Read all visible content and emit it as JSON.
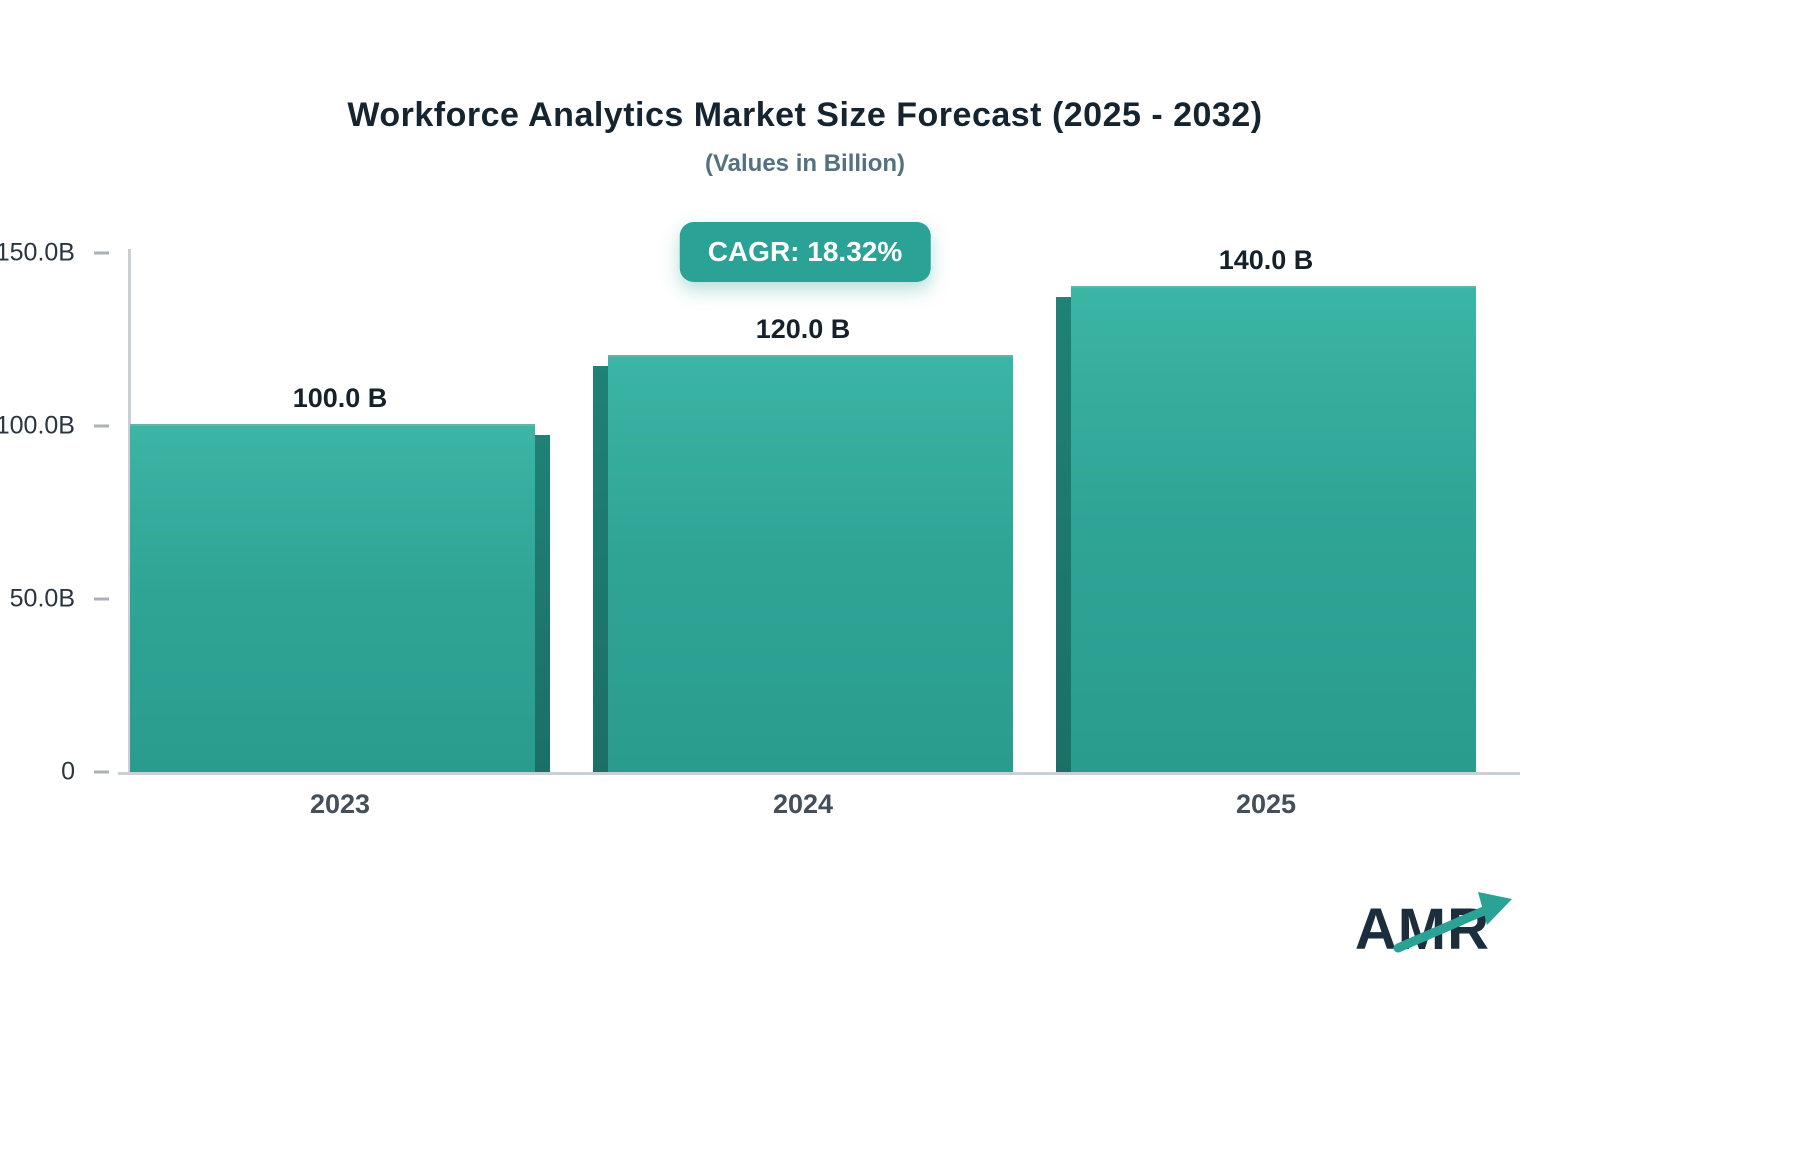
{
  "header": {
    "title": "Workforce Analytics Market Size Forecast (2025 - 2032)",
    "subtitle": "(Values in Billion)",
    "cagr_badge": "CAGR: 18.32%"
  },
  "chart_data": {
    "type": "bar",
    "title": "Workforce Analytics Market Size Forecast (2025 - 2032)",
    "subtitle": "(Values in Billion)",
    "categories": [
      "2023",
      "2024",
      "2025"
    ],
    "values": [
      100.0,
      120.0,
      140.0
    ],
    "value_labels": [
      "100.0 B",
      "120.0 B",
      "140.0 B"
    ],
    "unit": "Billion",
    "cagr": "18.32%",
    "ylim": [
      0,
      150
    ],
    "yticks": [
      {
        "value": 0,
        "label": "0"
      },
      {
        "value": 50,
        "label": "50.0B"
      },
      {
        "value": 100,
        "label": "100.0B"
      },
      {
        "value": 150,
        "label": "150.0B"
      }
    ],
    "grid": false,
    "legend": false,
    "bar_side_direction": [
      "right",
      "left",
      "left"
    ],
    "colors": {
      "bar_top": "#3bb5a5",
      "bar_bottom": "#2a9c8e",
      "bar_side": "#1e7f74",
      "badge": "#2ba296",
      "axis": "#c9d0d5",
      "title_text": "#16242f",
      "subtitle_text": "#53717f"
    }
  },
  "footer": {
    "logo_text": "AMR"
  }
}
